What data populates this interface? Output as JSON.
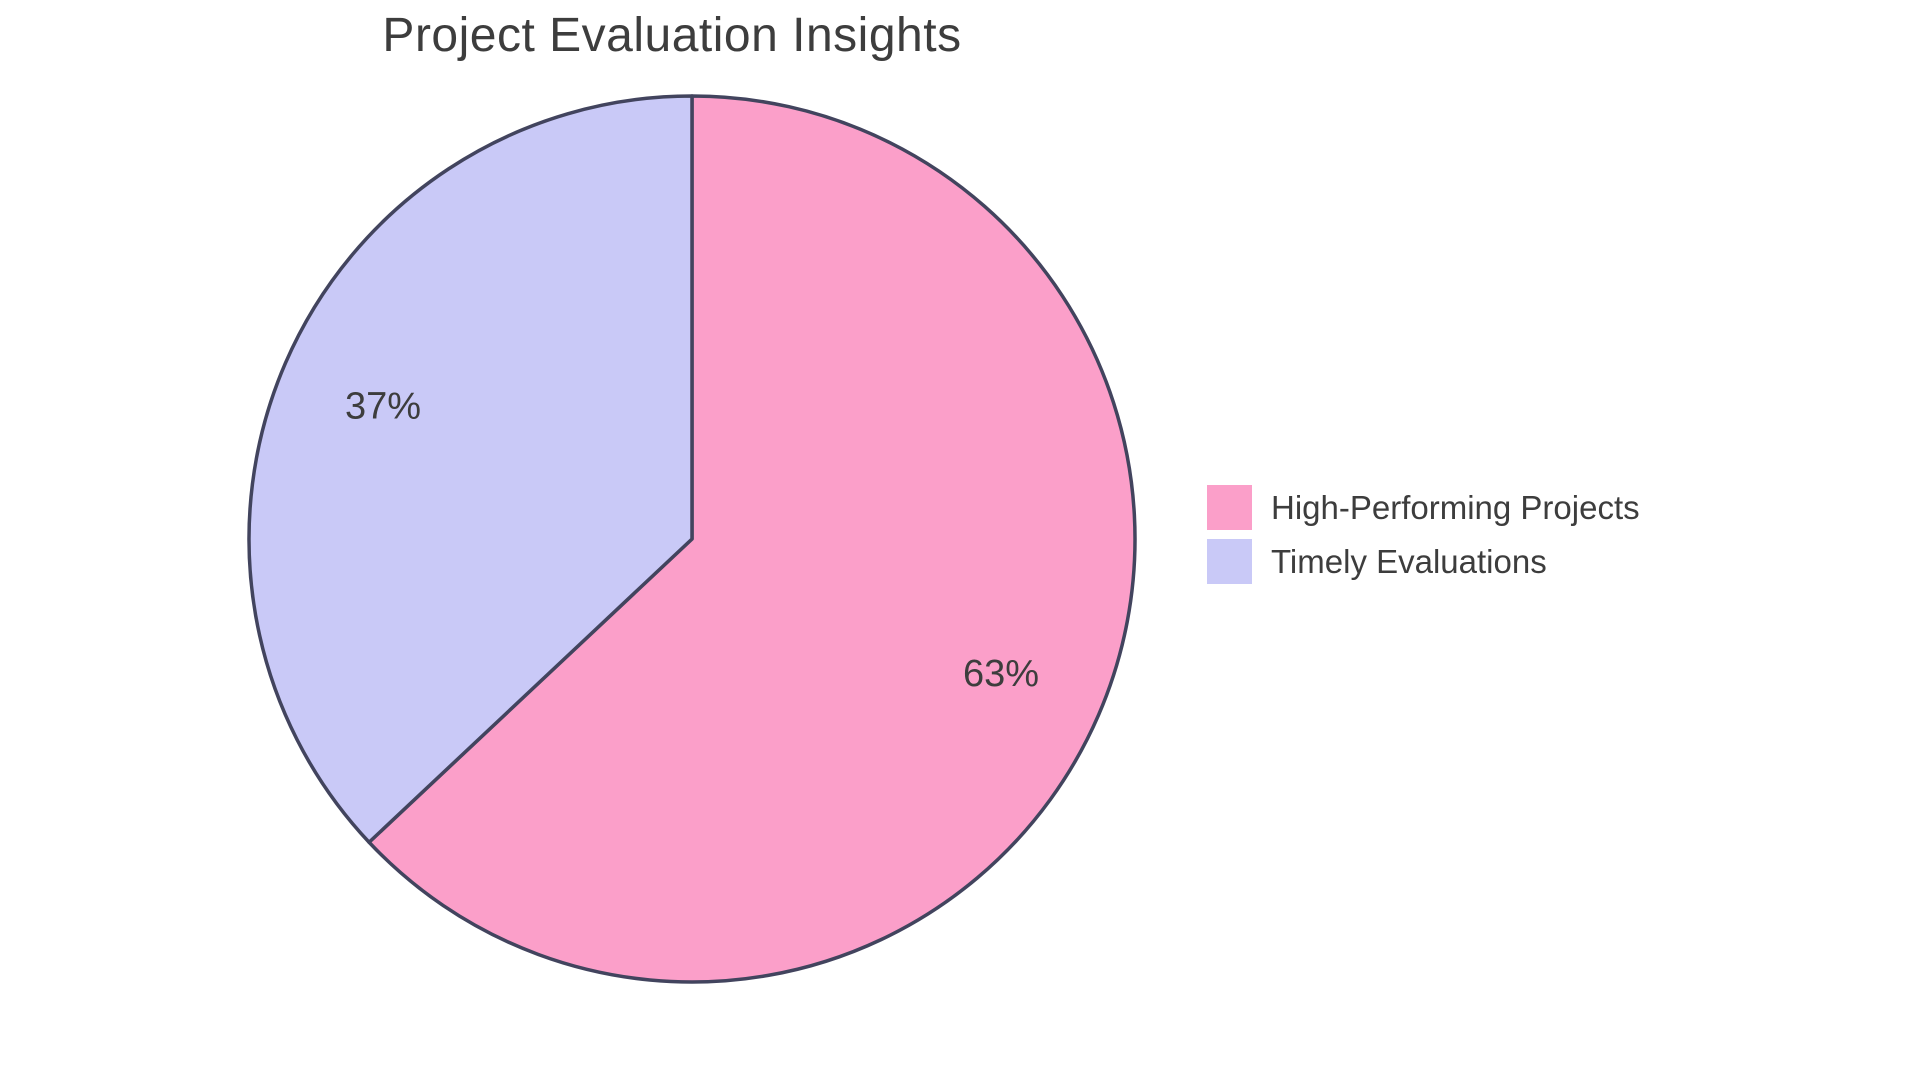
{
  "page": {
    "background": "#FFFFFF"
  },
  "chart_data": {
    "type": "pie",
    "title": "Project Evaluation Insights",
    "series": [
      {
        "label": "High-Performing Projects",
        "value": 63,
        "display_value": "63%",
        "color": "#FB9FC9"
      },
      {
        "label": "Timely Evaluations",
        "value": 37,
        "display_value": "37%",
        "color": "#C9C9F7"
      }
    ],
    "unit": "percent",
    "start_angle_deg": -90,
    "direction": "clockwise",
    "outline_color": "#42445E",
    "outline_width": 3.5,
    "title_color": "#3D3D3D",
    "label_color": "#3D3D3D",
    "legend_position": "right",
    "grid": false
  }
}
